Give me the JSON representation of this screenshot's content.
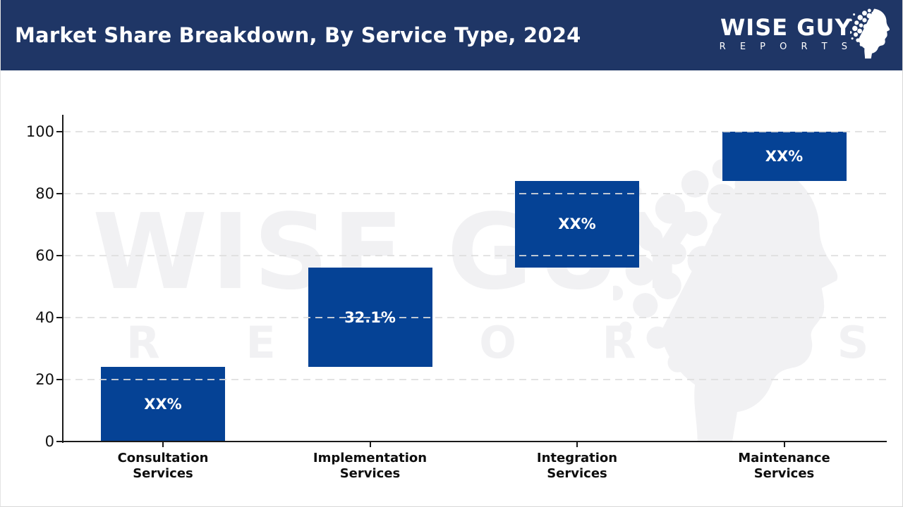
{
  "header": {
    "title": "Market Share Breakdown, By Service Type, 2024"
  },
  "logo": {
    "name": "WISE GUY",
    "tagline": "R E P O R T S"
  },
  "watermark": {
    "line1": "WISE GUY",
    "line2": "R E P O R T S"
  },
  "chart_data": {
    "type": "bar",
    "subtype": "waterfall",
    "title": "Market Share Breakdown, By Service Type, 2024",
    "categories": [
      "Consultation\nServices",
      "Implementation\nServices",
      "Integration\nServices",
      "Maintenance\nServices"
    ],
    "segments": [
      {
        "category": "Consultation Services",
        "start": 0,
        "end": 24,
        "label": "XX%"
      },
      {
        "category": "Implementation Services",
        "start": 24,
        "end": 56.1,
        "label": "32.1%"
      },
      {
        "category": "Integration Services",
        "start": 56.1,
        "end": 84,
        "label": "XX%"
      },
      {
        "category": "Maintenance Services",
        "start": 84,
        "end": 100,
        "label": "XX%"
      }
    ],
    "yticks": [
      0,
      20,
      40,
      60,
      80,
      100
    ],
    "ylim": [
      0,
      100
    ],
    "xlabel": "",
    "ylabel": "",
    "bar_color": "#054295",
    "grid": true,
    "legend": false
  },
  "colors": {
    "header_bg": "#1f3666",
    "bar": "#054295",
    "axis": "#1a1a1a",
    "grid": "#dedede",
    "watermark": "#f1f1f3"
  }
}
